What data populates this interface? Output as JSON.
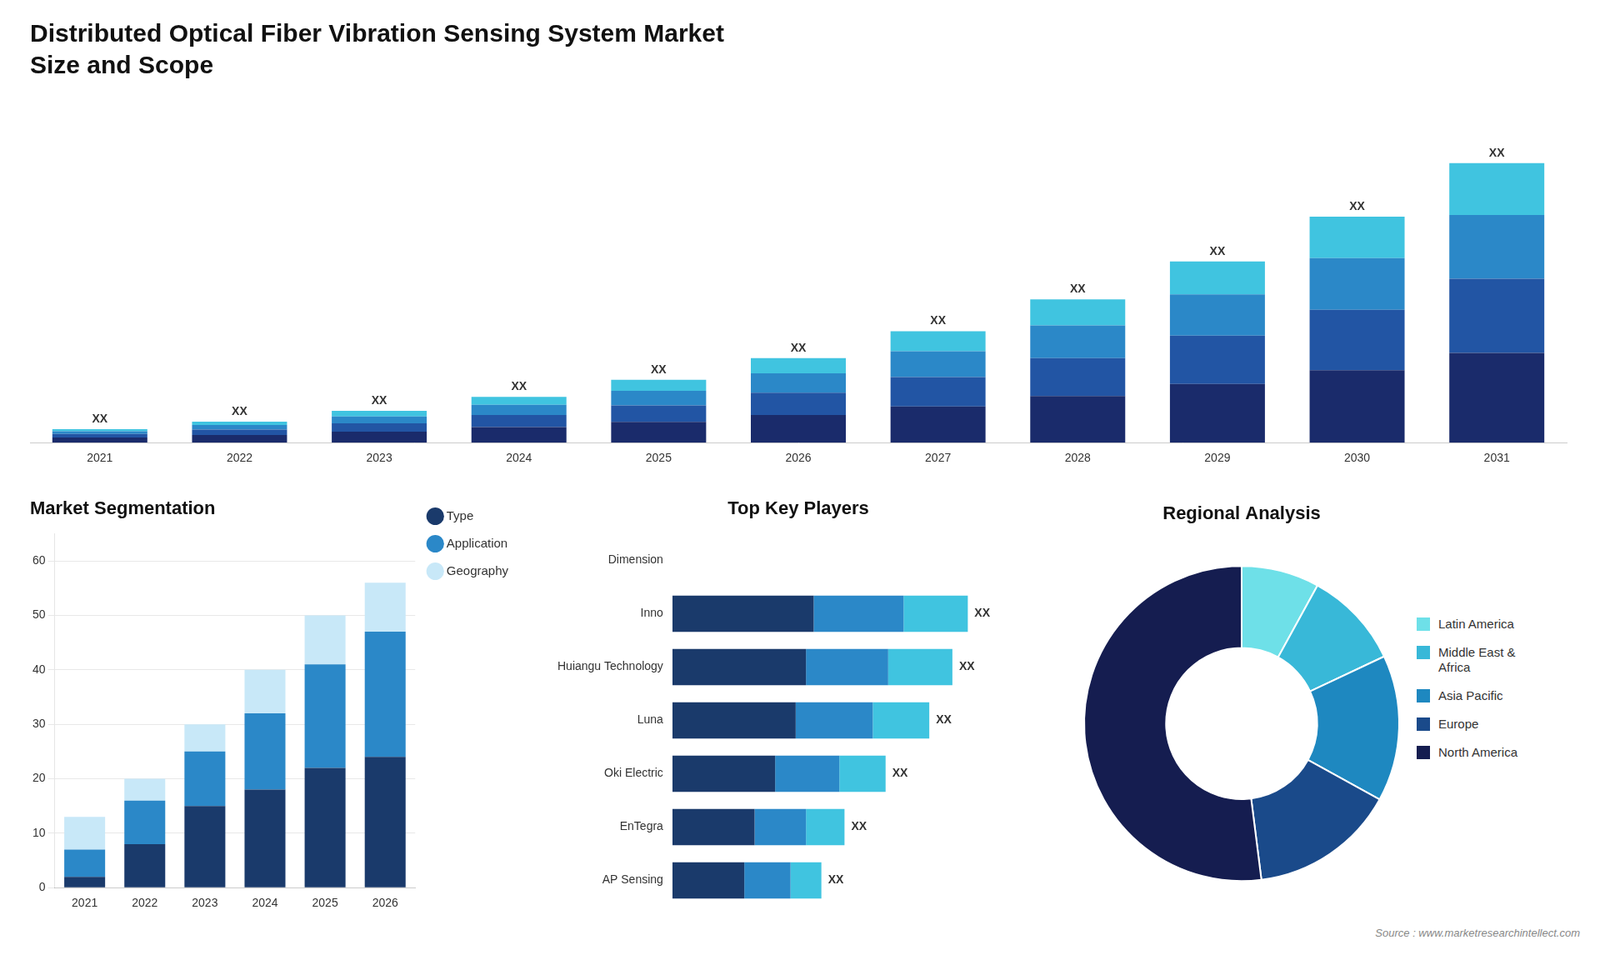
{
  "chart_data": [
    {
      "type": "bar",
      "stacked": true,
      "title": "Distributed Optical Fiber Vibration Sensing System Market",
      "subtitle": "Size and Scope",
      "categories": [
        2021,
        2022,
        2023,
        2024,
        2025,
        2026,
        2027,
        2028,
        2029,
        2030,
        2031
      ],
      "series": [
        {
          "color": "#1a2b6b",
          "values": [
            1.5,
            2.2,
            3.2,
            4.5,
            6.0,
            8.0,
            10.5,
            13.5,
            17.0,
            21.0,
            26.0
          ]
        },
        {
          "color": "#2255a4",
          "values": [
            1.0,
            1.6,
            2.4,
            3.5,
            4.8,
            6.5,
            8.5,
            11.0,
            14.0,
            17.5,
            21.5
          ]
        },
        {
          "color": "#2b88c8",
          "values": [
            0.8,
            1.3,
            2.0,
            3.0,
            4.2,
            5.6,
            7.5,
            9.5,
            12.0,
            15.0,
            18.5
          ]
        },
        {
          "color": "#40c4e0",
          "values": [
            0.6,
            1.0,
            1.6,
            2.3,
            3.2,
            4.4,
            5.8,
            7.5,
            9.5,
            12.0,
            15.0
          ]
        }
      ],
      "value_labels": [
        "XX",
        "XX",
        "XX",
        "XX",
        "XX",
        "XX",
        "XX",
        "XX",
        "XX",
        "XX",
        "XX"
      ],
      "ylim": [
        0,
        98.82
      ],
      "tick_labels": "x",
      "grid": false
    },
    {
      "type": "bar",
      "stacked": true,
      "title": "Market Segmentation",
      "categories": [
        2021,
        2022,
        2023,
        2024,
        2025,
        2026
      ],
      "series": [
        {
          "name": "Type",
          "color": "#1a3a6b",
          "values": [
            2,
            8,
            15,
            18,
            22,
            24
          ]
        },
        {
          "name": "Application",
          "color": "#2b88c8",
          "values": [
            5,
            8,
            10,
            14,
            19,
            23
          ]
        },
        {
          "name": "Geography",
          "color": "#c8e8f8",
          "values": [
            6,
            4,
            5,
            8,
            9,
            9
          ]
        }
      ],
      "ylim": [
        0,
        65
      ],
      "yticks": [
        0,
        10,
        20,
        30,
        40,
        50,
        60
      ],
      "grid": true,
      "legend": "right"
    },
    {
      "type": "bar",
      "stacked": true,
      "orientation": "horizontal",
      "title": "Top Key Players",
      "categories": [
        "Dimension",
        "Inno",
        "Huiangu Technology",
        "Luna",
        "Oki Electric",
        "EnTegra",
        "AP Sensing"
      ],
      "series": [
        {
          "color": "#1a3a6b",
          "values": [
            0,
            5.5,
            5.2,
            4.8,
            4.0,
            3.2,
            2.8
          ]
        },
        {
          "color": "#2b88c8",
          "values": [
            0,
            3.5,
            3.2,
            3.0,
            2.5,
            2.0,
            1.8
          ]
        },
        {
          "color": "#40c4e0",
          "values": [
            0,
            2.5,
            2.5,
            2.2,
            1.8,
            1.5,
            1.2
          ]
        }
      ],
      "value_labels": [
        null,
        "XX",
        "XX",
        "XX",
        "XX",
        "XX",
        "XX"
      ],
      "xlim": [
        0,
        14.375
      ],
      "tick_labels": "y",
      "grid": false
    },
    {
      "type": "doughnut",
      "title": "Regional Analysis",
      "categories": [
        "Latin America",
        "Middle East &\nAfrica",
        "Asia Pacific",
        "Europe",
        "North America"
      ],
      "values": [
        8,
        10,
        15,
        15,
        52
      ],
      "colors": [
        "#6ee0e8",
        "#38b8d8",
        "#1e88c0",
        "#1a4a8a",
        "#151d50"
      ],
      "legend": "right",
      "annotations": [
        "Source : www.marketresearchintellect.com"
      ]
    }
  ]
}
